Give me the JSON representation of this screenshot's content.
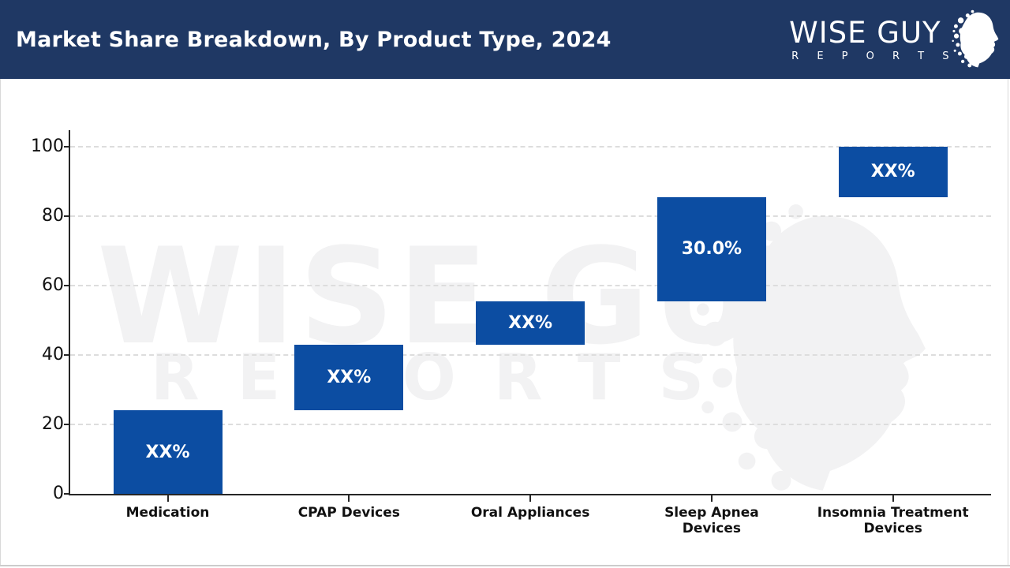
{
  "header": {
    "title": "Market Share Breakdown, By Product Type, 2024",
    "background_color": "#1f3864",
    "logo": {
      "name": "WISE GUY",
      "subtitle": "R E P O R T S"
    }
  },
  "watermark": {
    "line1": "WISE GUY",
    "line2": "REPORTS"
  },
  "chart_data": {
    "type": "bar",
    "subtype": "waterfall",
    "title": "Market Share Breakdown, By Product Type, 2024",
    "categories": [
      "Medication",
      "CPAP Devices",
      "Oral Appliances",
      "Sleep Apnea\nDevices",
      "Insomnia Treatment\nDevices"
    ],
    "bars": [
      {
        "category": "Medication",
        "start": 0,
        "end": 24,
        "label": "XX%"
      },
      {
        "category": "CPAP Devices",
        "start": 24,
        "end": 43,
        "label": "XX%"
      },
      {
        "category": "Oral Appliances",
        "start": 43,
        "end": 55.5,
        "label": "XX%"
      },
      {
        "category": "Sleep Apnea Devices",
        "start": 55.5,
        "end": 85.5,
        "label": "30.0%",
        "value": 30.0
      },
      {
        "category": "Insomnia Treatment Devices",
        "start": 85.5,
        "end": 100,
        "label": "XX%"
      }
    ],
    "yticks": [
      0,
      20,
      40,
      60,
      80,
      100
    ],
    "ylim": [
      0,
      105
    ],
    "xlabel": "",
    "ylabel": "",
    "grid": "horizontal-dashed",
    "legend": "none",
    "bar_color": "#0c4da2",
    "label_color": "#ffffff"
  }
}
